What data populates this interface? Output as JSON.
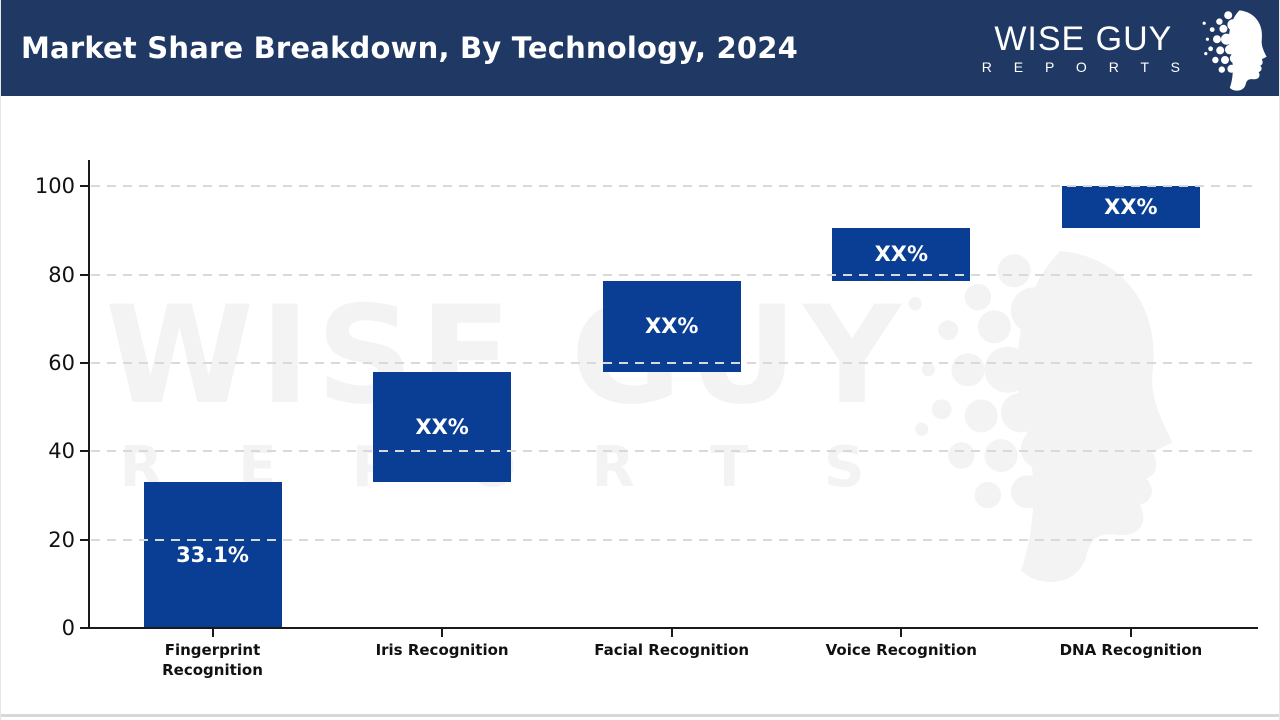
{
  "header": {
    "title": "Market Share Breakdown, By Technology, 2024",
    "brand": {
      "line1": "WISE GUY",
      "line2": "R E P O R T S"
    }
  },
  "watermark": {
    "line1": "WISE GUY",
    "line2": "R E P O R T S"
  },
  "colors": {
    "header_bg": "#203864",
    "bar": "#0a3e94",
    "grid": "#d9d9d9",
    "axis": "#1a1a1a",
    "bar_label": "#ffffff",
    "watermark": "#f3f3f3"
  },
  "chart_data": {
    "type": "bar",
    "subtype": "waterfall",
    "title": "Market Share Breakdown, By Technology, 2024",
    "categories": [
      "Fingerprint Recognition",
      "Iris Recognition",
      "Facial Recognition",
      "Voice Recognition",
      "DNA Recognition"
    ],
    "segments": [
      {
        "category": "Fingerprint Recognition",
        "start": 0,
        "end": 33.1,
        "value_pct": 33.1,
        "label": "33.1%"
      },
      {
        "category": "Iris Recognition",
        "start": 33.1,
        "end": 58.0,
        "value_pct": 24.9,
        "label": "XX%"
      },
      {
        "category": "Facial Recognition",
        "start": 58.0,
        "end": 78.6,
        "value_pct": 20.6,
        "label": "XX%"
      },
      {
        "category": "Voice Recognition",
        "start": 78.6,
        "end": 90.6,
        "value_pct": 12.0,
        "label": "XX%"
      },
      {
        "category": "DNA Recognition",
        "start": 90.6,
        "end": 100,
        "value_pct": 9.4,
        "label": "XX%"
      }
    ],
    "xlabel": "",
    "ylabel": "",
    "ylim": [
      0,
      106
    ],
    "yticks": [
      0,
      20,
      40,
      60,
      80,
      100
    ],
    "grid": "dashed-horizontal",
    "legend": "none"
  }
}
